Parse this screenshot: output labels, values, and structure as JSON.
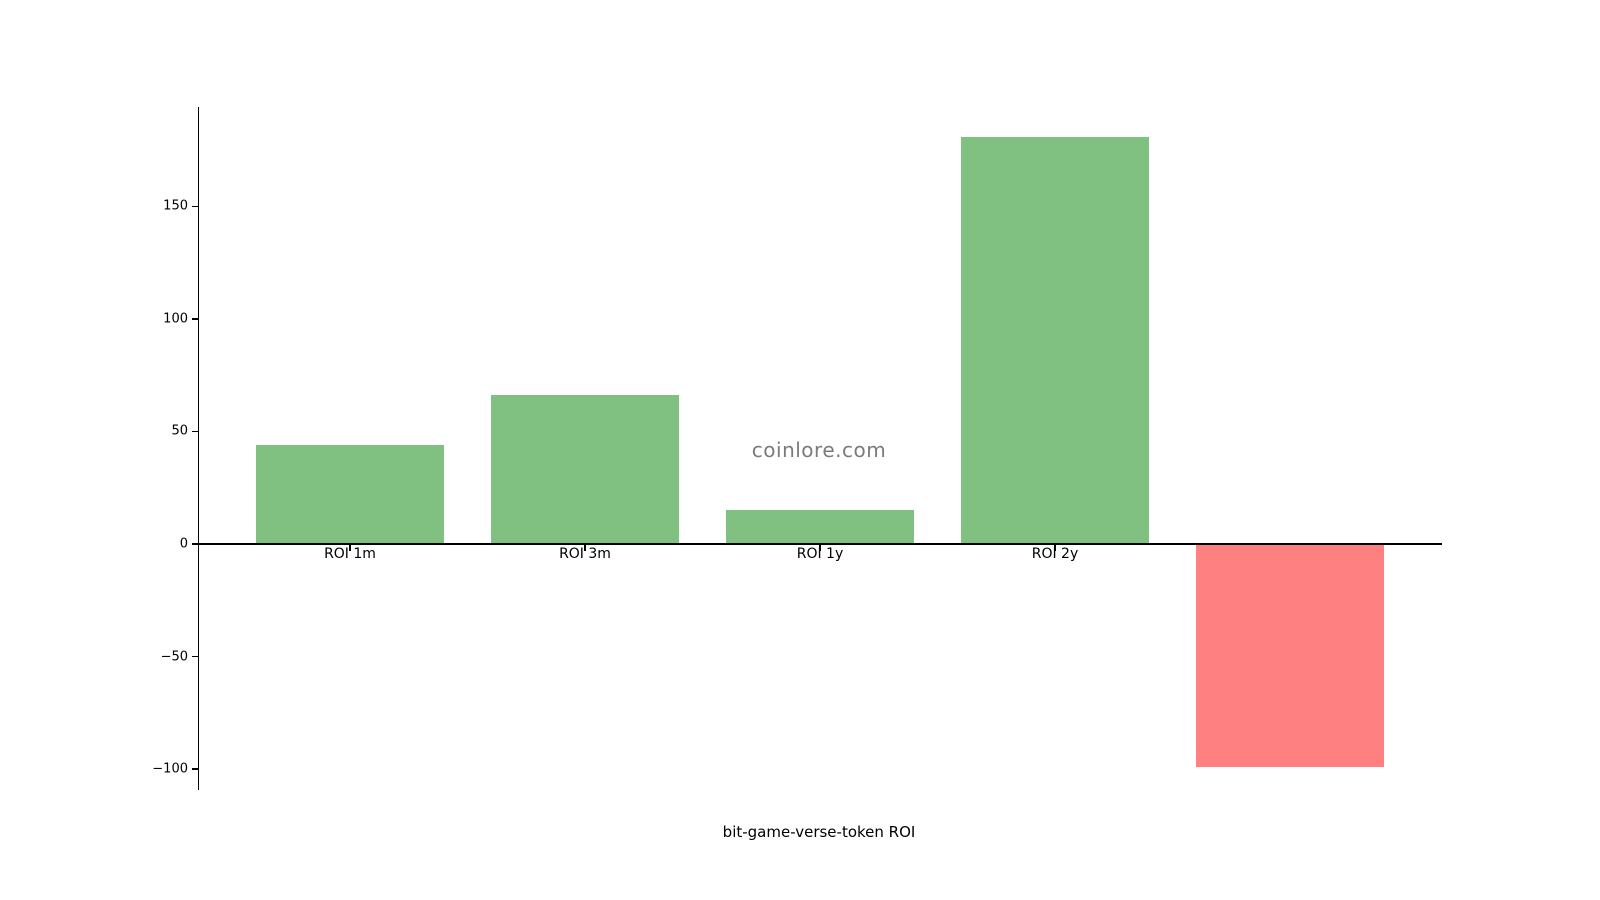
{
  "watermark": "coinlore.com",
  "caption": "bit-game-verse-token ROI",
  "colors": {
    "positive_bar": "#80c080",
    "negative_bar": "#ff8080",
    "axis": "#000000",
    "watermark_text": "#7b7b7b",
    "tick_text": "#000000",
    "background": "#ffffff"
  },
  "chart_data": {
    "type": "bar",
    "title": "bit-game-verse-token ROI",
    "watermark": "coinlore.com",
    "categories": [
      "ROI 1m",
      "ROI 3m",
      "ROI 1y",
      "ROI 2y",
      ""
    ],
    "values": [
      44,
      66,
      15,
      181,
      -99
    ],
    "bar_colors": [
      "#80c080",
      "#80c080",
      "#80c080",
      "#80c080",
      "#ff8080"
    ],
    "series_note": "single series; green = positive ROI, red = negative ROI; fifth bar has no visible x label",
    "xlabel": "",
    "ylabel": "",
    "yticks": [
      150,
      100,
      50,
      0,
      -50,
      -100
    ],
    "ylim": [
      -110,
      194
    ],
    "grid": false,
    "legend_position": "none"
  }
}
